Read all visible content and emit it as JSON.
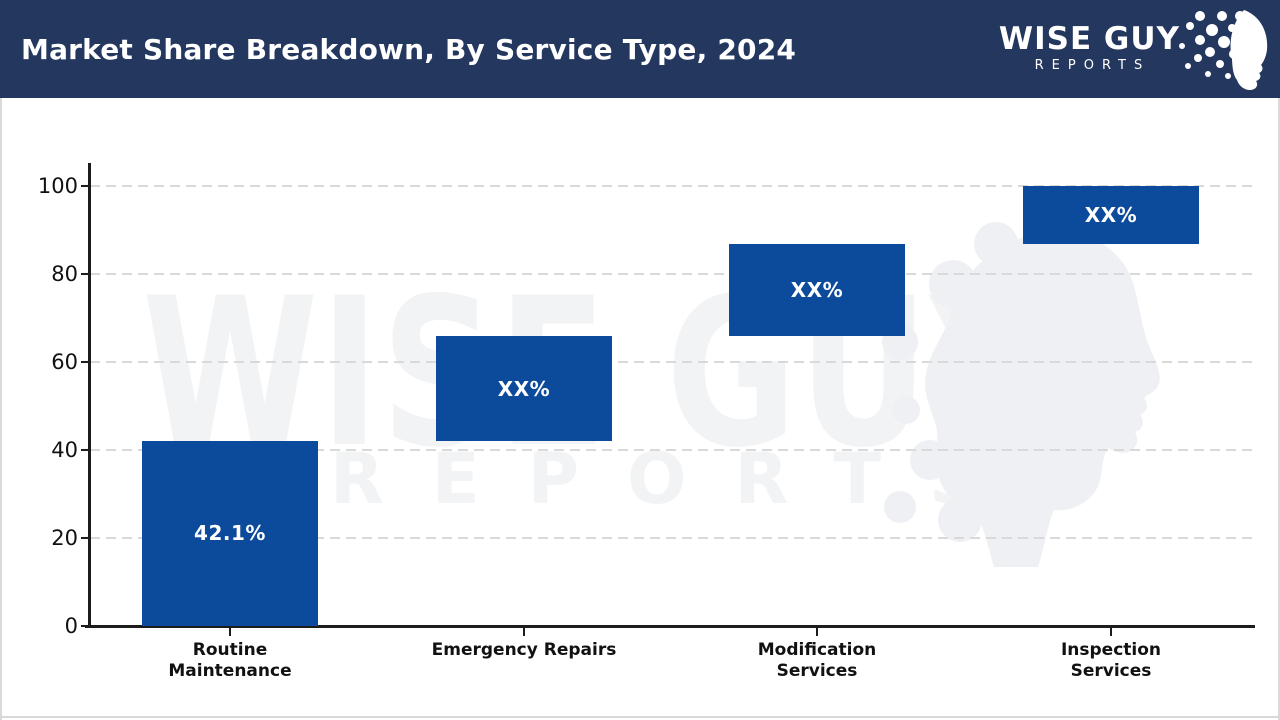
{
  "header": {
    "title": "Market Share Breakdown, By Service Type, 2024",
    "logo": {
      "wordmark": "WISE GUY",
      "subtext": "REPORTS"
    },
    "bg_color": "#24375f"
  },
  "watermark": {
    "wordmark": "WISE GUY",
    "subtext": "REPORTS"
  },
  "chart_data": {
    "type": "bar",
    "subtype": "waterfall",
    "title": "Market Share Breakdown, By Service Type, 2024",
    "categories": [
      "Routine Maintenance",
      "Emergency Repairs",
      "Modification Services",
      "Inspection Services"
    ],
    "category_label_lines": [
      [
        "Routine",
        "Maintenance"
      ],
      [
        "Emergency Repairs"
      ],
      [
        "Modification",
        "Services"
      ],
      [
        "Inspection",
        "Services"
      ]
    ],
    "segments": [
      {
        "category": "Routine Maintenance",
        "start": 0,
        "end": 42.1,
        "label": "42.1%"
      },
      {
        "category": "Emergency Repairs",
        "start": 42.1,
        "end": 65.8,
        "label": "XX%"
      },
      {
        "category": "Modification Services",
        "start": 65.8,
        "end": 86.8,
        "label": "XX%"
      },
      {
        "category": "Inspection Services",
        "start": 86.8,
        "end": 100.0,
        "label": "XX%"
      }
    ],
    "ylim": [
      0,
      100
    ],
    "yticks": [
      0,
      20,
      40,
      60,
      80,
      100
    ],
    "xlabel": "",
    "ylabel": "",
    "grid": "horizontal-dashed",
    "legend": "none",
    "bar_color": "#0c4a9c",
    "bar_label_color": "#ffffff",
    "axis_color": "#1c1c1c",
    "grid_color": "#d9d9d9"
  }
}
